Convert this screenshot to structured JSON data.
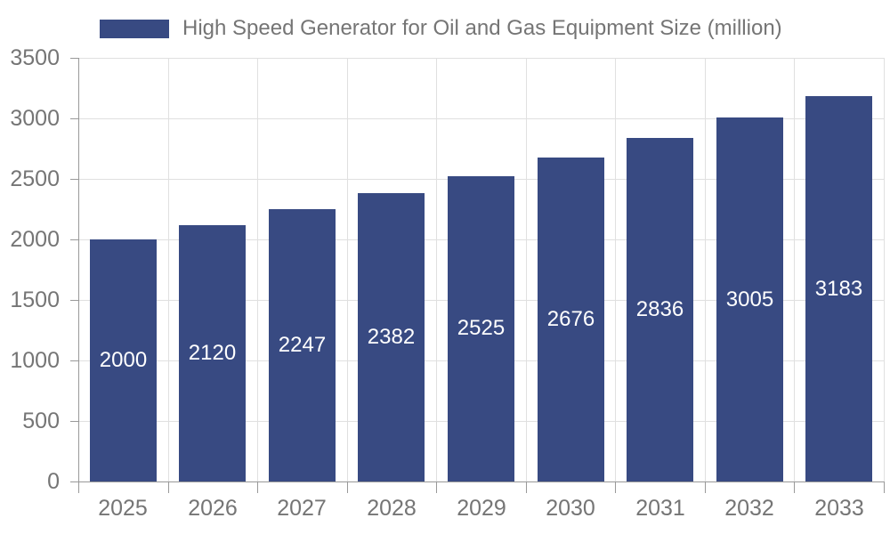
{
  "legend": {
    "label": "High Speed Generator for Oil and Gas Equipment Size (million)"
  },
  "colors": {
    "bar": "#384A82",
    "grid": "#E0E0E0",
    "axis": "#999999",
    "tick_text": "#757575",
    "bar_label_text": "#FFFFFF",
    "background": "#FFFFFF"
  },
  "chart_data": {
    "type": "bar",
    "title": "High Speed Generator for Oil and Gas Equipment Size (million)",
    "categories": [
      "2025",
      "2026",
      "2027",
      "2028",
      "2029",
      "2030",
      "2031",
      "2032",
      "2033"
    ],
    "values": [
      2000,
      2120,
      2247,
      2382,
      2525,
      2676,
      2836,
      3005,
      3183
    ],
    "xlabel": "",
    "ylabel": "",
    "ylim": [
      0,
      3500
    ],
    "yticks": [
      0,
      500,
      1000,
      1500,
      2000,
      2500,
      3000,
      3500
    ],
    "grid": true,
    "legend_position": "top-left",
    "bar_value_labels": "inside-center"
  }
}
